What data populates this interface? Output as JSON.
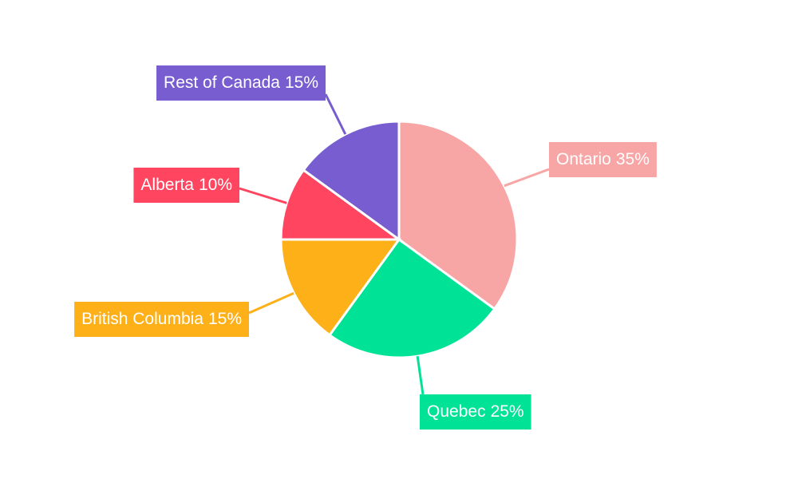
{
  "chart_data": {
    "type": "pie",
    "categories": [
      "Ontario",
      "Quebec",
      "British Columbia",
      "Alberta",
      "Rest of Canada"
    ],
    "values": [
      35,
      25,
      15,
      10,
      15
    ],
    "value_labels": [
      "35%",
      "25%",
      "15%",
      "10%",
      "15%"
    ],
    "colors": [
      "#f8a5a6",
      "#00e396",
      "#feb019",
      "#ff4560",
      "#775dd0"
    ]
  }
}
